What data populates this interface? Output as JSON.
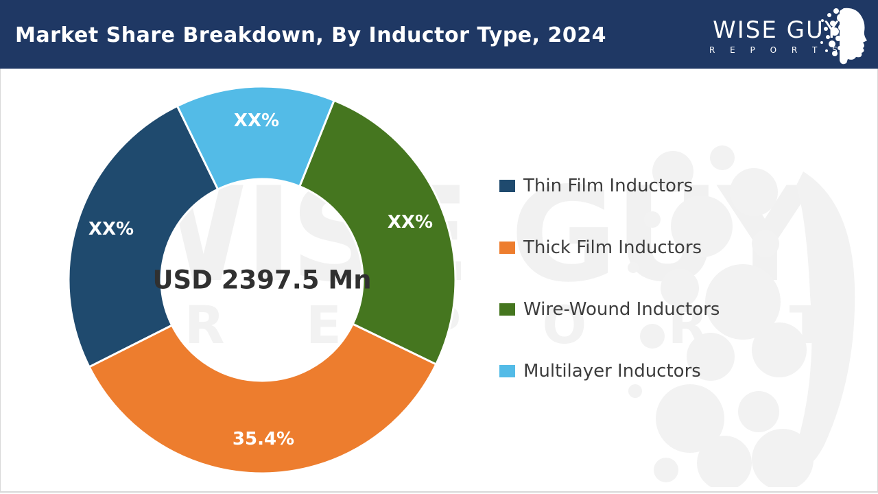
{
  "header": {
    "title": "Market Share Breakdown, By Inductor Type, 2024",
    "bg_color": "#1f3864",
    "logo": {
      "wordmark": "WISE GUY",
      "subtitle": "R E P O R T S"
    }
  },
  "watermark": {
    "line1": "WISE GUY",
    "line2": "R E P O R T S"
  },
  "chart_data": {
    "type": "pie",
    "subtype": "donut",
    "title": "Market Share Breakdown, By Inductor Type, 2024",
    "center_label": "USD 2397.5 Mn",
    "legend_position": "right",
    "start_angle_deg": -26,
    "direction": "counterclockwise",
    "categories": [
      "Thin Film Inductors",
      "Thick Film Inductors",
      "Wire-Wound Inductors",
      "Multilayer Inductors"
    ],
    "segments": [
      {
        "label": "Thin Film Inductors",
        "display_value": "XX%",
        "value_pct_est": 25.2,
        "color": "#1f4a6e"
      },
      {
        "label": "Thick Film Inductors",
        "display_value": "35.4%",
        "value_pct_est": 35.4,
        "color": "#ed7d2e"
      },
      {
        "label": "Wire-Wound Inductors",
        "display_value": "XX%",
        "value_pct_est": 26.1,
        "color": "#45761f"
      },
      {
        "label": "Multilayer Inductors",
        "display_value": "XX%",
        "value_pct_est": 13.3,
        "color": "#53bbe7"
      }
    ]
  },
  "colors": {
    "header_bg": "#1f3864",
    "legend_text": "#3d3d3d",
    "center_text": "#303030",
    "watermark": "#f1f1f1",
    "border": "#d8d8d8",
    "slice_label": "#ffffff"
  }
}
